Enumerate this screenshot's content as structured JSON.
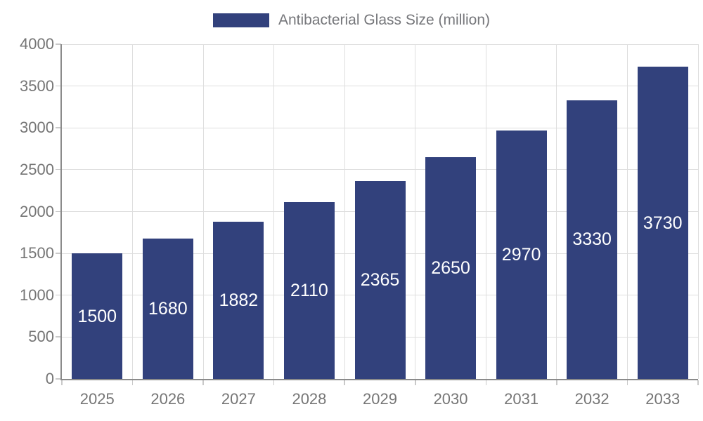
{
  "chart_data": {
    "type": "bar",
    "title": "Antibacterial Glass Size (million)",
    "categories": [
      "2025",
      "2026",
      "2027",
      "2028",
      "2029",
      "2030",
      "2031",
      "2032",
      "2033"
    ],
    "series": [
      {
        "name": "Antibacterial Glass Size (million)",
        "values": [
          1500,
          1680,
          1882,
          2110,
          2365,
          2650,
          2970,
          3330,
          3730
        ]
      }
    ],
    "xlabel": "",
    "ylabel": "",
    "ylim": [
      0,
      4000
    ],
    "ytick_interval": 500,
    "ytick_labels": [
      "0",
      "500",
      "1000",
      "1500",
      "2000",
      "2500",
      "3000",
      "3500",
      "4000"
    ],
    "grid": true,
    "legend_position": "top",
    "bar_value_labels_visible": true
  },
  "legend": {
    "label": "Antibacterial Glass Size (million)"
  },
  "colors": {
    "bar": "#32417c",
    "bar_value_label": "#ffffff",
    "grid": "#dedede",
    "axis": "#8b8b8b",
    "tick_mark": "#c9c9c9",
    "tick_label": "#757575",
    "legend_text": "#76777b",
    "background": "#ffffff"
  }
}
